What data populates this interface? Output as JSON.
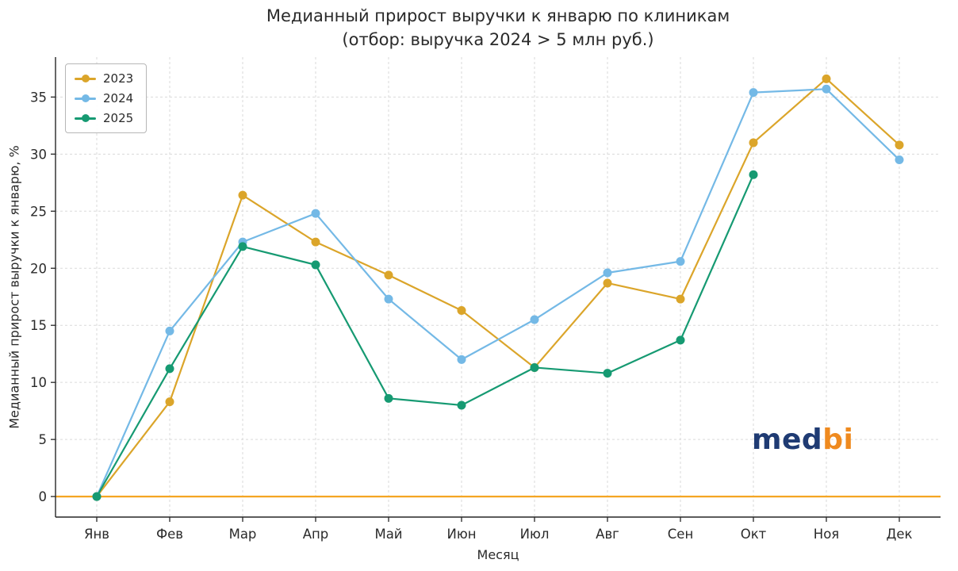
{
  "title": "Медианный прирост выручки к январю по клиникам",
  "subtitle": "(отбор: выручка 2024 > 5 млн руб.)",
  "watermark": {
    "part1": "med",
    "part2": "bi",
    "color1": "#1f3b73",
    "color2": "#ef8a1f"
  },
  "chart_data": {
    "type": "line",
    "title": "Медианный прирост выручки к январю по клиникам",
    "subtitle": "(отбор: выручка 2024 > 5 млн руб.)",
    "xlabel": "Месяц",
    "ylabel": "Медианный прирост выручки к январю, %",
    "categories": [
      "Янв",
      "Фев",
      "Мар",
      "Апр",
      "Май",
      "Июн",
      "Июл",
      "Авг",
      "Сен",
      "Окт",
      "Ноя",
      "Дек"
    ],
    "series": [
      {
        "name": "2023",
        "color": "#dba52a",
        "values": [
          0,
          8.3,
          26.4,
          22.3,
          19.4,
          16.3,
          11.3,
          18.7,
          17.3,
          31.0,
          36.6,
          30.8
        ]
      },
      {
        "name": "2024",
        "color": "#74b9e6",
        "values": [
          0,
          14.5,
          22.3,
          24.8,
          17.3,
          12.0,
          15.5,
          19.6,
          20.6,
          35.4,
          35.7,
          29.5
        ]
      },
      {
        "name": "2025",
        "color": "#169a72",
        "values": [
          0,
          11.2,
          21.9,
          20.3,
          8.6,
          8.0,
          11.3,
          10.8,
          13.7,
          28.2,
          null,
          null
        ]
      }
    ],
    "yticks": [
      0,
      5,
      10,
      15,
      20,
      25,
      30,
      35
    ],
    "ylim": [
      -1.8,
      38.5
    ],
    "grid": true,
    "grid_style": "dashed",
    "legend_position": "upper-left",
    "zero_line_color": "#f5a623",
    "axis_color": "#262626"
  }
}
